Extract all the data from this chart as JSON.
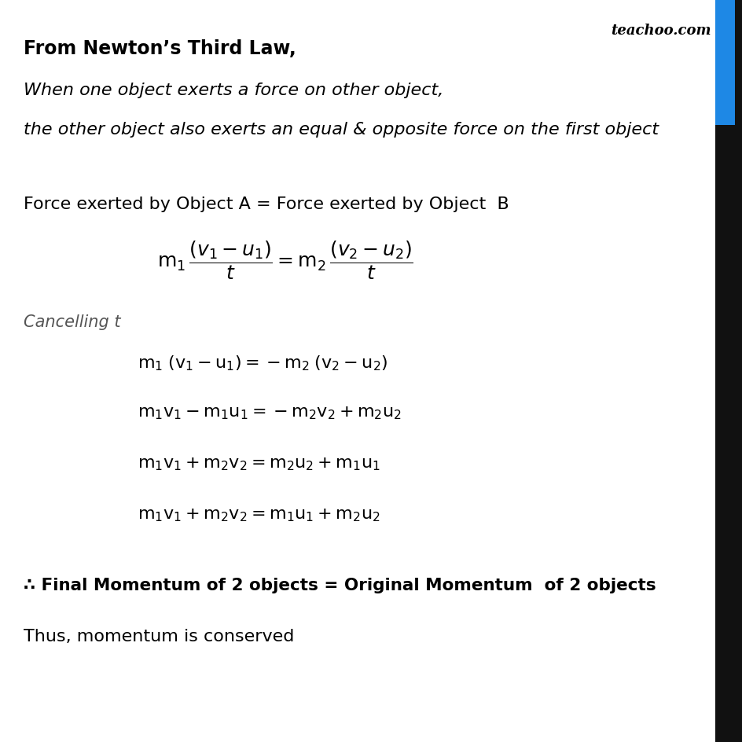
{
  "bg_color": "#ffffff",
  "blue_bar_color": "#1E88E5",
  "black_bar_color": "#111111",
  "teachoo_text": "teachoo.com",
  "line1_bold": "From Newton’s Third Law,",
  "line2_italic": "When one object exerts a force on other object,",
  "line3_italic": "the other object also exerts an equal & opposite force on the first object",
  "line4": "Force exerted by Object A = Force exerted by Object  B",
  "cancel_italic": "Cancelling t",
  "conclusion_bold": "∴ Final Momentum of 2 objects = Original Momentum  of 2 objects",
  "last_line": "Thus, momentum is conserved",
  "fig_width": 9.45,
  "fig_height": 9.45,
  "dpi": 100
}
